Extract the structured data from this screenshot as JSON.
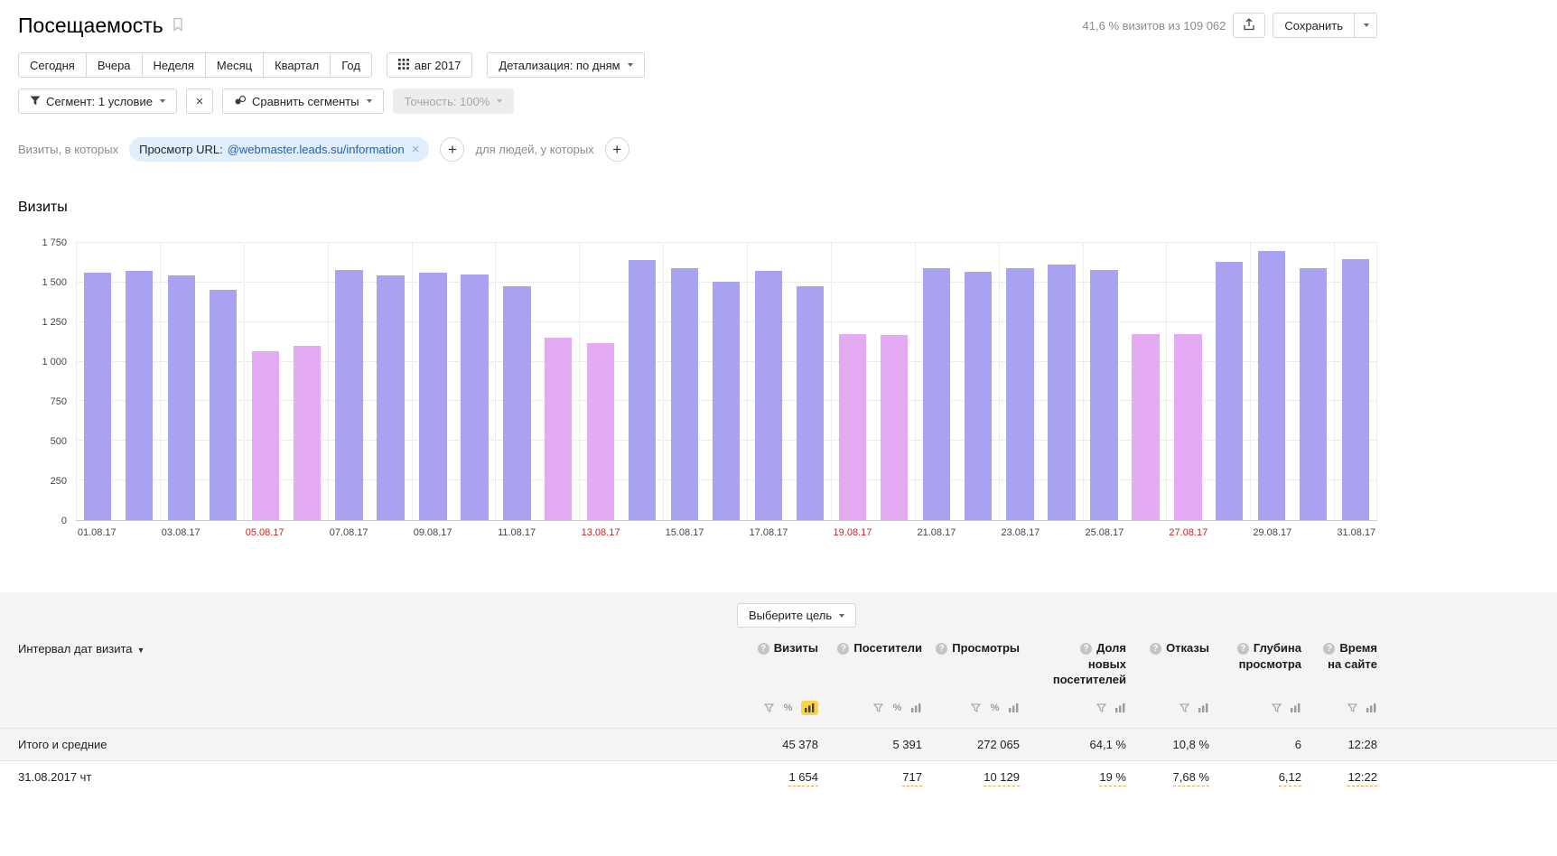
{
  "header": {
    "title": "Посещаемость",
    "visits_share": "41,6 % визитов из 109 062",
    "save_label": "Сохранить"
  },
  "periods": {
    "items": [
      "Сегодня",
      "Вчера",
      "Неделя",
      "Месяц",
      "Квартал",
      "Год"
    ],
    "calendar_label": "авг 2017",
    "detail_label": "Детализация: по дням"
  },
  "segments": {
    "segment_label": "Сегмент: 1 условие",
    "compare_label": "Сравнить сегменты",
    "accuracy_label": "Точность: 100%"
  },
  "filters": {
    "visits_in_which": "Визиты, в которых",
    "chip_prefix": "Просмотр URL:",
    "chip_value": "@webmaster.leads.su/information",
    "for_people": "для людей, у которых"
  },
  "chart_data": {
    "type": "bar",
    "title": "Визиты",
    "ylabel": "",
    "xlabel": "",
    "ylim": [
      0,
      1750
    ],
    "yticks": [
      0,
      250,
      500,
      750,
      1000,
      1250,
      1500,
      1750
    ],
    "ytick_labels": [
      "0",
      "250",
      "500",
      "750",
      "1 000",
      "1 250",
      "1 500",
      "1 750"
    ],
    "categories": [
      "01.08.17",
      "02.08.17",
      "03.08.17",
      "04.08.17",
      "05.08.17",
      "06.08.17",
      "07.08.17",
      "08.08.17",
      "09.08.17",
      "10.08.17",
      "11.08.17",
      "12.08.17",
      "13.08.17",
      "14.08.17",
      "15.08.17",
      "16.08.17",
      "17.08.17",
      "18.08.17",
      "19.08.17",
      "20.08.17",
      "21.08.17",
      "22.08.17",
      "23.08.17",
      "24.08.17",
      "25.08.17",
      "26.08.17",
      "27.08.17",
      "28.08.17",
      "29.08.17",
      "30.08.17",
      "31.08.17"
    ],
    "values": [
      1560,
      1575,
      1545,
      1455,
      1065,
      1100,
      1580,
      1545,
      1560,
      1550,
      1475,
      1150,
      1120,
      1640,
      1590,
      1505,
      1575,
      1475,
      1175,
      1170,
      1590,
      1570,
      1590,
      1615,
      1580,
      1175,
      1175,
      1630,
      1700,
      1590,
      1650
    ],
    "weekend_indices": [
      4,
      5,
      11,
      12,
      18,
      19,
      25,
      26
    ],
    "label_every": 2,
    "grid": true,
    "legend": "none",
    "colors": {
      "weekday_bar": "#a8a2f0",
      "weekend_bar": "#e4aaf2",
      "weekend_label": "#cc2222"
    }
  },
  "table": {
    "goal_button_label": "Выберите цель",
    "row_header": "Интервал дат визита",
    "columns": [
      {
        "label": "Визиты",
        "tools": [
          "filter",
          "percent",
          "bars"
        ],
        "active_tool": "bars"
      },
      {
        "label": "Посетители",
        "tools": [
          "filter",
          "percent",
          "bars"
        ]
      },
      {
        "label": "Просмотры",
        "tools": [
          "filter",
          "percent",
          "bars"
        ]
      },
      {
        "label": "Доля\nновых\nпосетителей",
        "tools": [
          "filter",
          "bars"
        ]
      },
      {
        "label": "Отказы",
        "tools": [
          "filter",
          "bars"
        ]
      },
      {
        "label": "Глубина\nпросмотра",
        "tools": [
          "filter",
          "bars"
        ]
      },
      {
        "label": "Время\nна сайте",
        "tools": [
          "filter",
          "bars"
        ]
      }
    ],
    "rows": [
      {
        "label": "Итого и средние",
        "totals": true,
        "linked": false,
        "values": [
          "45 378",
          "5 391",
          "272 065",
          "64,1 %",
          "10,8 %",
          "6",
          "12:28"
        ]
      },
      {
        "label": "31.08.2017 чт",
        "totals": false,
        "linked": true,
        "values": [
          "1 654",
          "717",
          "10 129",
          "19 %",
          "7,68 %",
          "6,12",
          "12:22"
        ]
      }
    ]
  }
}
